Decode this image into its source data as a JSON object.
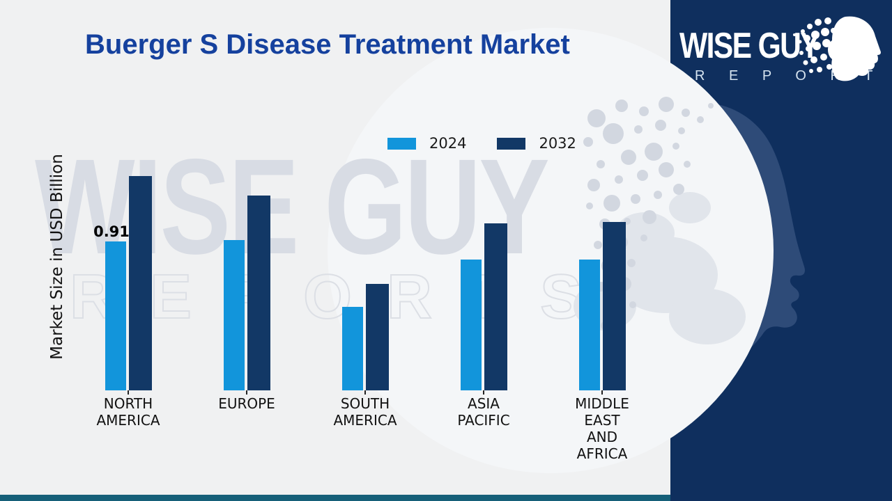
{
  "title": "Buerger S Disease Treatment Market",
  "y_axis_label": "Market Size in USD Billion",
  "logo": {
    "line1": "WISE GUY",
    "line2": "R E P O R T S"
  },
  "watermark": {
    "line1": "WISE GUY",
    "line2": "REPORTS"
  },
  "colors": {
    "background": "#f0f1f2",
    "title": "#15419e",
    "bar_2024": "#1295db",
    "bar_2032": "#123866",
    "side_panel": "#0f2f5e",
    "panel_face": "#2e4b78",
    "bottom_bar": "#166079",
    "watermark_text": "#d8dce4"
  },
  "chart_data": {
    "type": "bar",
    "title": "Buerger S Disease Treatment Market",
    "ylabel": "Market Size in USD Billion",
    "xlabel": "",
    "grid": false,
    "legend_position": "top",
    "ylim": [
      0,
      1.4
    ],
    "categories": [
      "NORTH AMERICA",
      "EUROPE",
      "SOUTH AMERICA",
      "ASIA PACIFIC",
      "MIDDLE EAST AND AFRICA"
    ],
    "label_lines": [
      [
        "NORTH",
        "AMERICA"
      ],
      [
        "EUROPE"
      ],
      [
        "SOUTH",
        "AMERICA"
      ],
      [
        "ASIA",
        "PACIFIC"
      ],
      [
        "MIDDLE",
        "EAST",
        "AND",
        "AFRICA"
      ]
    ],
    "series": [
      {
        "name": "2024",
        "color": "#1295db",
        "values": [
          0.91,
          0.92,
          0.51,
          0.8,
          0.8
        ]
      },
      {
        "name": "2032",
        "color": "#123866",
        "values": [
          1.31,
          1.19,
          0.65,
          1.02,
          1.03
        ]
      }
    ],
    "data_labels": [
      {
        "series": "2024",
        "category": "NORTH AMERICA",
        "text": "0.91"
      }
    ]
  }
}
